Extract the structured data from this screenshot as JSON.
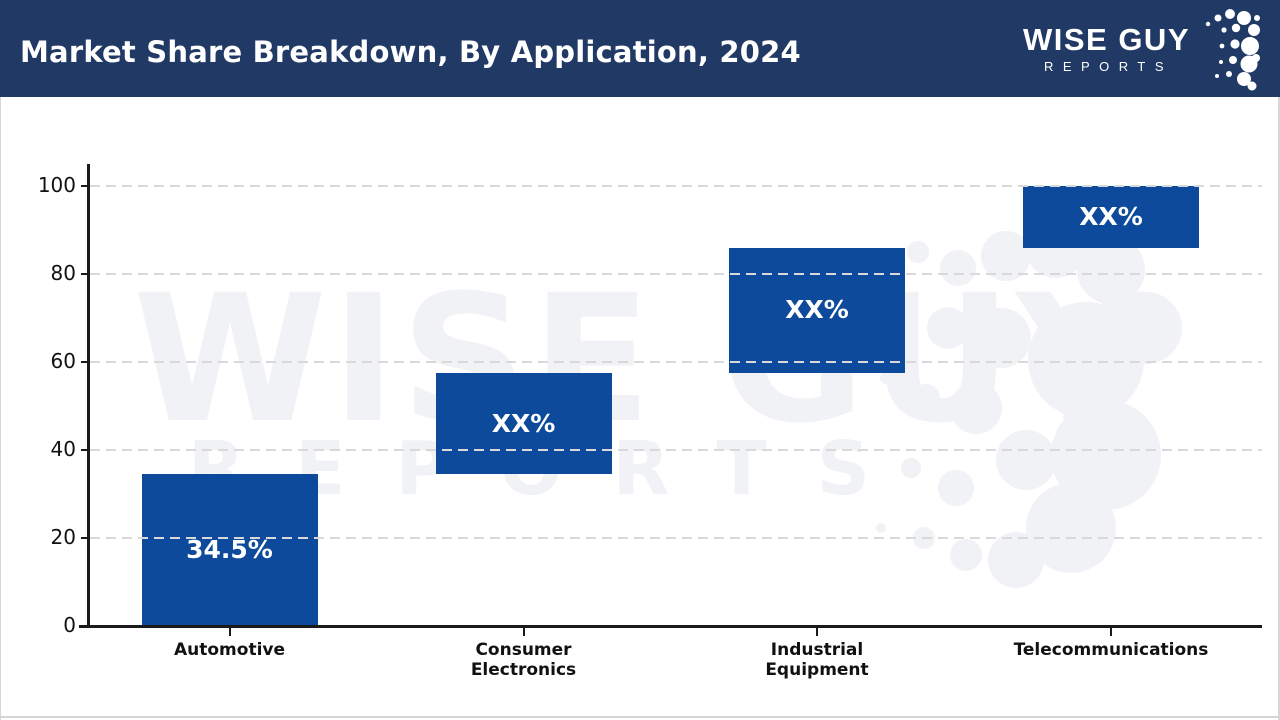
{
  "header": {
    "title": "Market Share Breakdown, By Application, 2024",
    "background": "#213965",
    "logo": {
      "wordmark": "WISE GUY",
      "subtext": "REPORTS"
    }
  },
  "watermark": {
    "line1": "WISE GUY",
    "line2": "REPORTS"
  },
  "chart_data": {
    "type": "bar",
    "variant": "waterfall-floating-segments",
    "title": "Market Share Breakdown, By Application, 2024",
    "xlabel": "",
    "ylabel": "",
    "ylim": [
      0,
      100
    ],
    "yticks": [
      0,
      20,
      40,
      60,
      80,
      100
    ],
    "grid": {
      "axis": "y",
      "style": "dashed",
      "on_top_of_bars": true
    },
    "legend": "none",
    "bars": [
      {
        "category": "Automotive",
        "category_lines": [
          "Automotive"
        ],
        "start": 0,
        "end": 34.5,
        "height": 34.5,
        "label": "34.5%"
      },
      {
        "category": "Consumer Electronics",
        "category_lines": [
          "Consumer",
          "Electronics"
        ],
        "start": 34.5,
        "end": 57.5,
        "height": 23,
        "label": "XX%"
      },
      {
        "category": "Industrial Equipment",
        "category_lines": [
          "Industrial",
          "Equipment"
        ],
        "start": 57.5,
        "end": 86,
        "height": 28.5,
        "label": "XX%"
      },
      {
        "category": "Telecommunications",
        "category_lines": [
          "Telecommunications"
        ],
        "start": 86,
        "end": 100,
        "height": 14,
        "label": "XX%"
      }
    ],
    "colors": {
      "bar": "#0d4a9b",
      "bar_label": "#ffffff",
      "grid": "#d9d9d9",
      "axis": "#1a1a1a",
      "tick_label": "#111111",
      "header_bg": "#213965",
      "watermark": "#f1f2f5"
    }
  }
}
